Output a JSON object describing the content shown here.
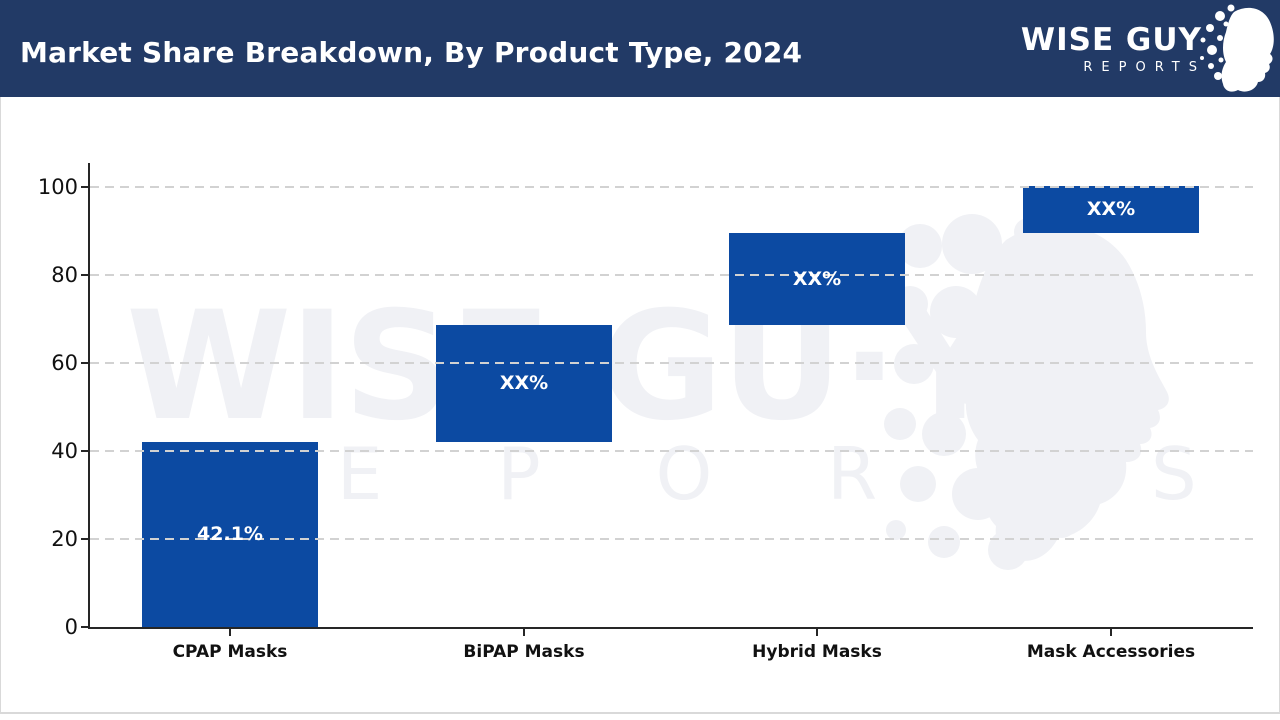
{
  "header": {
    "title": "Market Share Breakdown, By Product Type, 2024",
    "logo": {
      "line1": "WISE GUY",
      "line2": "REPORTS"
    }
  },
  "watermark": {
    "line1": "WISE GU·Y",
    "line2": "R E P O R T S"
  },
  "colors": {
    "header_navy": "#223a66",
    "bar_blue": "#0c4aa2",
    "grid_gray": "#d2d2d2",
    "axis_black": "#262626",
    "watermark_gray": "#f0f1f5",
    "title_white": "#ffffff",
    "label_white": "#ffffff",
    "text_black": "#111111"
  },
  "chart_data": {
    "type": "bar",
    "subtype": "waterfall-floating-bars",
    "title": "Market Share Breakdown, By Product Type, 2024",
    "xlabel": "",
    "ylabel": "",
    "categories": [
      "CPAP Masks",
      "BiPAP Masks",
      "Hybrid Masks",
      "Mask Accessories"
    ],
    "series": [
      {
        "name": "Market share (%)",
        "segments": [
          {
            "category": "CPAP Masks",
            "from": 0,
            "to": 42.1,
            "label": "42.1%"
          },
          {
            "category": "BiPAP Masks",
            "from": 42.1,
            "to": 68.7,
            "label": "XX%"
          },
          {
            "category": "Hybrid Masks",
            "from": 68.7,
            "to": 89.6,
            "label": "XX%"
          },
          {
            "category": "Mask Accessories",
            "from": 89.6,
            "to": 100.3,
            "label": "XX%"
          }
        ]
      }
    ],
    "yticks": [
      0,
      20,
      40,
      60,
      80,
      100
    ],
    "ylim": [
      0,
      105
    ],
    "grid": "dashed horizontal gridlines above bars",
    "legend": "none"
  }
}
